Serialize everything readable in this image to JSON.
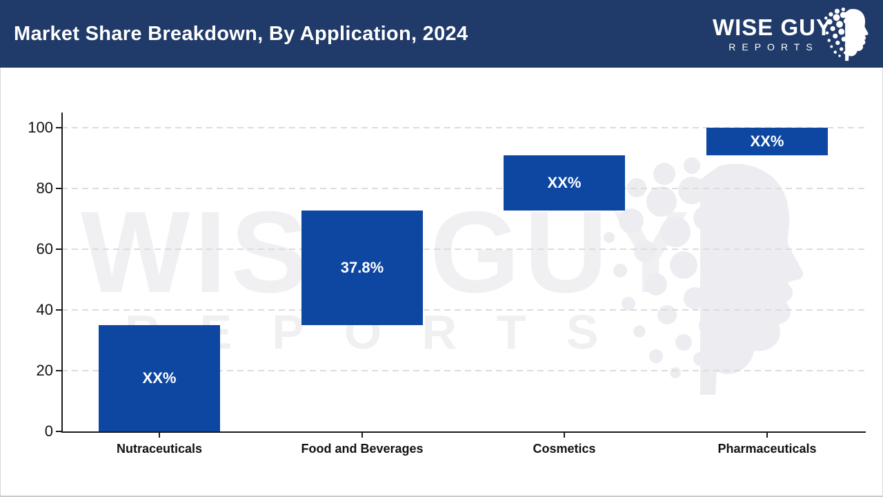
{
  "header": {
    "title": "Market Share Breakdown, By Application, 2024",
    "logo": {
      "line1": "WISE GUY",
      "line2": "REPORTS"
    }
  },
  "watermark": {
    "line1": "WISE GUY",
    "line2": "REPORTS"
  },
  "colors": {
    "header_bg": "#203a69",
    "bar": "#0d47a1",
    "gridline": "#dcdcdc",
    "axis": "#1a1a1a",
    "bar_label_text": "#ffffff",
    "watermark": "#f0f0f3"
  },
  "chart_data": {
    "type": "bar",
    "subtype": "waterfall",
    "title": "Market Share Breakdown, By Application, 2024",
    "categories": [
      "Nutraceuticals",
      "Food and Beverages",
      "Cosmetics",
      "Pharmaceuticals"
    ],
    "segments": [
      {
        "category": "Nutraceuticals",
        "start": 0,
        "end": 35,
        "value": 35,
        "label": "XX%"
      },
      {
        "category": "Food and Beverages",
        "start": 35,
        "end": 72.8,
        "value": 37.8,
        "label": "37.8%"
      },
      {
        "category": "Cosmetics",
        "start": 72.8,
        "end": 90.8,
        "value": 18,
        "label": "XX%"
      },
      {
        "category": "Pharmaceuticals",
        "start": 90.8,
        "end": 100,
        "value": 9.2,
        "label": "XX%"
      }
    ],
    "xlabel": "",
    "ylabel": "",
    "ylim": [
      0,
      105
    ],
    "yticks": [
      0,
      20,
      40,
      60,
      80,
      100
    ],
    "grid": "horizontal-dashed",
    "legend": false,
    "bar_color": "#0d47a1"
  }
}
